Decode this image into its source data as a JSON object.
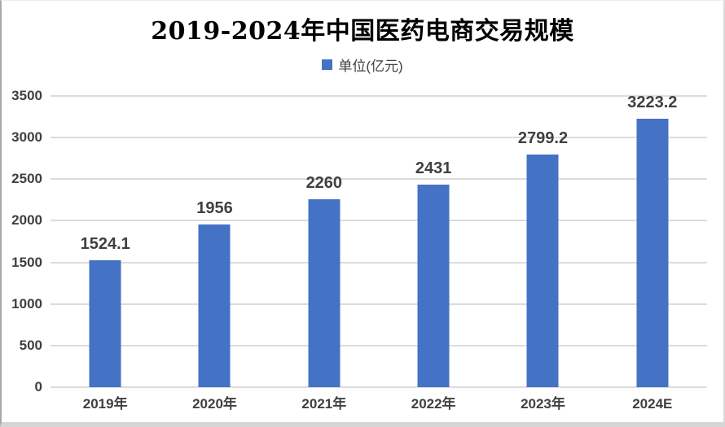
{
  "title": "2019-2024年中国医药电商交易规模",
  "legend": {
    "label": "单位(亿元)",
    "marker_color": "#4472C4"
  },
  "chart_data": {
    "type": "bar",
    "title": "2019-2024年中国医药电商交易规模",
    "categories": [
      "2019年",
      "2020年",
      "2021年",
      "2022年",
      "2023年",
      "2024E"
    ],
    "values": [
      1524.1,
      1956,
      2260,
      2431,
      2799.2,
      3223.2
    ],
    "value_labels": [
      "1524.1",
      "1956",
      "2260",
      "2431",
      "2799.2",
      "3223.2"
    ],
    "series_name": "单位(亿元)",
    "xlabel": "",
    "ylabel": "",
    "ylim": [
      0,
      3500
    ],
    "ytick_step": 500,
    "ytick_labels": [
      "0",
      "500",
      "1000",
      "1500",
      "2000",
      "2500",
      "3000",
      "3500"
    ],
    "grid": true,
    "legend_position": "top",
    "bar_color": "#4472C4",
    "gridline_color": "#dcdcdc",
    "label_color": "#404040"
  }
}
